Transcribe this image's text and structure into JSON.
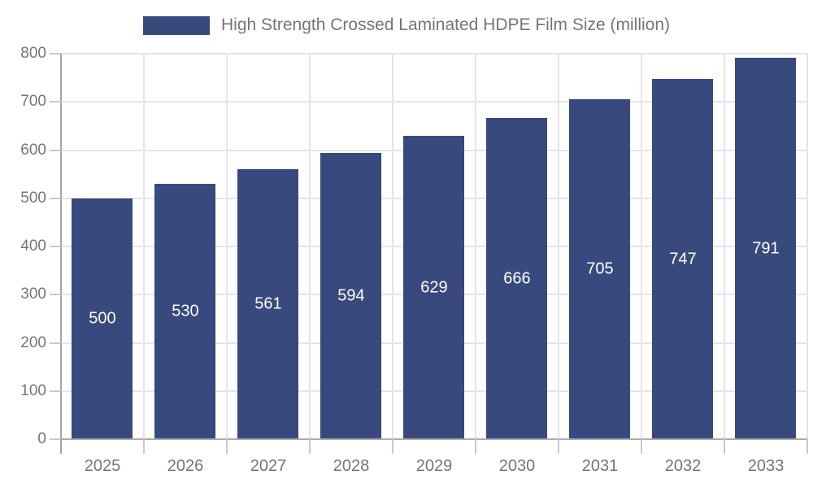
{
  "legend": {
    "label": "High Strength Crossed Laminated HDPE Film Size (million)"
  },
  "chart_data": {
    "type": "bar",
    "title": "High Strength Crossed Laminated HDPE Film Size (million)",
    "series_name": "High Strength Crossed Laminated HDPE Film Size (million)",
    "categories": [
      "2025",
      "2026",
      "2027",
      "2028",
      "2029",
      "2030",
      "2031",
      "2032",
      "2033"
    ],
    "values": [
      500,
      530,
      561,
      594,
      629,
      666,
      705,
      747,
      791
    ],
    "xlabel": "",
    "ylabel": "",
    "ylim": [
      0,
      800
    ],
    "yticks": [
      0,
      100,
      200,
      300,
      400,
      500,
      600,
      700,
      800
    ],
    "grid": true,
    "legend_position": "top-center",
    "bar_color": "#38497E",
    "value_label_color": "#FFFFFF",
    "axis_text_color": "#757575",
    "gridline_color": "#E5E5E5",
    "axis_line_color": "#A5A5A5"
  }
}
